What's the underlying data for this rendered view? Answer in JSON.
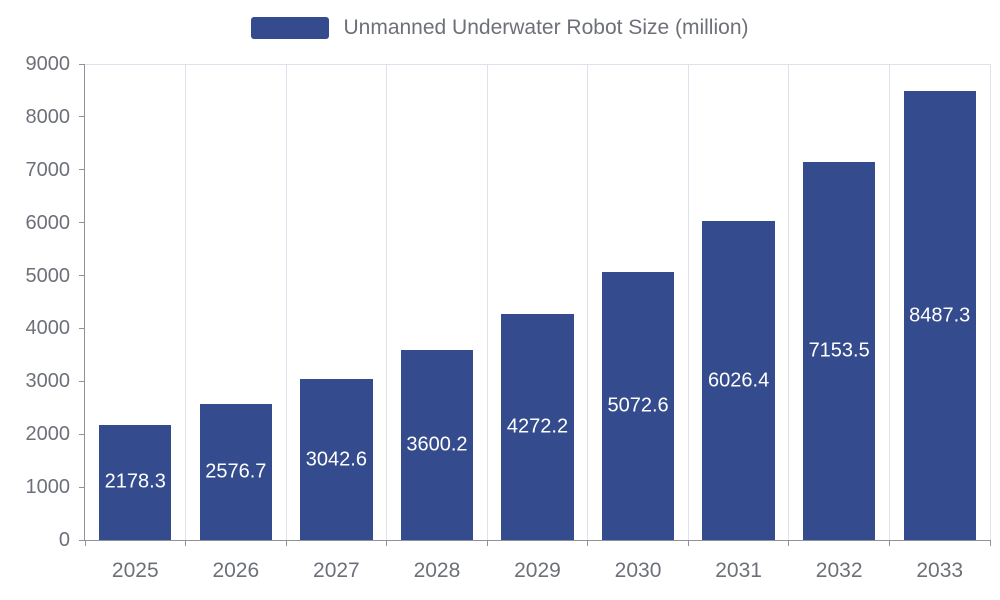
{
  "chart_data": {
    "type": "bar",
    "title": "Unmanned Underwater Robot Size (million)",
    "series": [
      {
        "name": "Unmanned Underwater Robot Size (million)",
        "values": [
          2178.3,
          2576.7,
          3042.6,
          3600.2,
          4272.2,
          5072.6,
          6026.4,
          7153.5,
          8487.3
        ]
      }
    ],
    "categories": [
      "2025",
      "2026",
      "2027",
      "2028",
      "2029",
      "2030",
      "2031",
      "2032",
      "2033"
    ],
    "xlabel": "",
    "ylabel": "",
    "ylim": [
      0,
      9000
    ],
    "y_ticks": [
      0,
      1000,
      2000,
      3000,
      4000,
      5000,
      6000,
      7000,
      8000,
      9000
    ],
    "legend_position": "top-center",
    "grid": "vertical-only",
    "colors": {
      "bar": "#344B8D",
      "bar_value_label": "#ffffff",
      "axis_label": "#6E7079",
      "axis_line": "#8F9399",
      "gridline": "#DDE2EC",
      "background": "#ffffff"
    }
  }
}
